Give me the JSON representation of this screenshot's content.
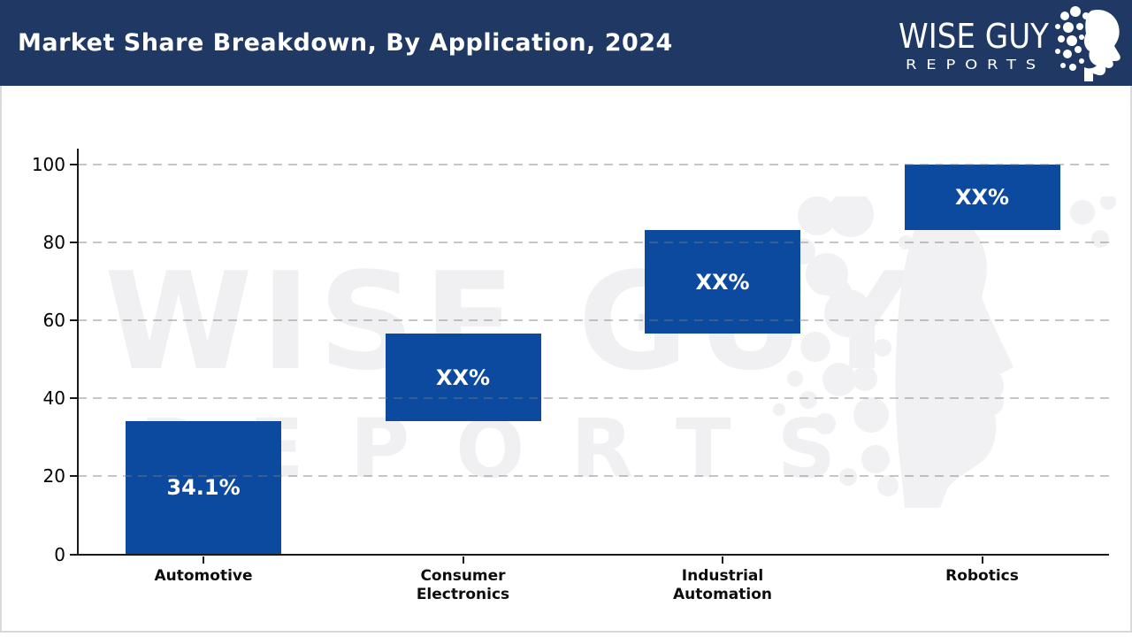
{
  "header": {
    "title": "Market Share Breakdown, By Application, 2024",
    "logo": {
      "line1": "WISE GUY",
      "line2": "REPORTS"
    }
  },
  "watermark": {
    "line1": "WISE GUY",
    "line2": "REPORTS"
  },
  "colors": {
    "header_bg": "#1F3864",
    "bar_blue": "#0C4AA0",
    "axis_black": "#1a1a1a",
    "watermark_gray": "#f0f0f3",
    "grid_gray": "#c9c9c9"
  },
  "chart_data": {
    "type": "bar",
    "subtype": "waterfall",
    "title": "Market Share Breakdown, By Application, 2024",
    "categories": [
      "Automotive",
      "Consumer\nElectronics",
      "Industrial\nAutomation",
      "Robotics"
    ],
    "values": [
      34.1,
      22.5,
      26.5,
      16.9
    ],
    "segments": [
      {
        "category": "Automotive",
        "start": 0,
        "end": 34.1,
        "label": "34.1%"
      },
      {
        "category": "Consumer Electronics",
        "start": 34.1,
        "end": 56.6,
        "label": "XX%"
      },
      {
        "category": "Industrial Automation",
        "start": 56.6,
        "end": 83.1,
        "label": "XX%"
      },
      {
        "category": "Robotics",
        "start": 83.1,
        "end": 100,
        "label": "XX%"
      }
    ],
    "xlabel": "",
    "ylabel": "",
    "yticks": [
      0,
      20,
      40,
      60,
      80,
      100
    ],
    "ylim": [
      0,
      100
    ],
    "grid": "horizontal-dashed-over-bars",
    "legend": "none",
    "bar_color": "#0C4AA0",
    "bar_label_color": "#ffffff"
  }
}
